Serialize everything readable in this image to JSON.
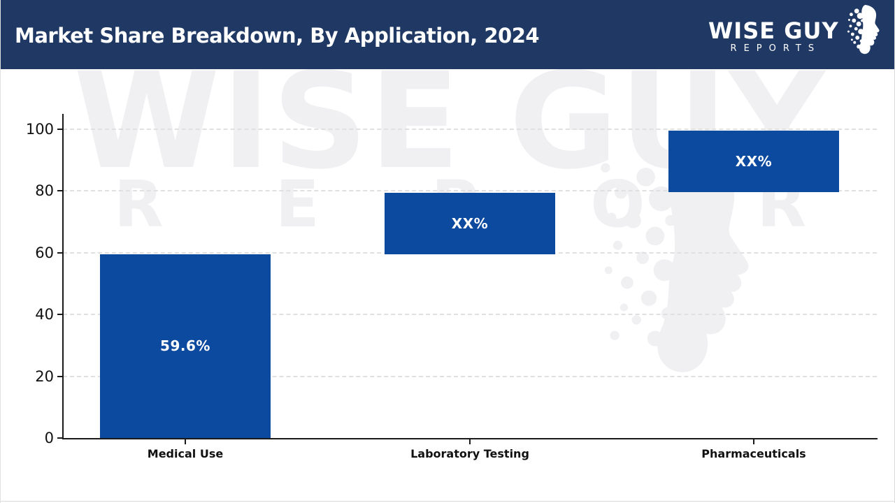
{
  "header": {
    "title": "Market Share Breakdown, By Application, 2024",
    "bg_color": "#1f3864",
    "logo_line1": "WISE GUY",
    "logo_line2": "REPORTS"
  },
  "watermark": {
    "line1": "WISE GUY",
    "line2": "R E P O R T S"
  },
  "chart_data": {
    "type": "bar",
    "subtype": "waterfall",
    "title": "Market Share Breakdown, By Application, 2024",
    "categories": [
      "Medical Use",
      "Laboratory Testing",
      "Pharmaceuticals"
    ],
    "bars": [
      {
        "category": "Medical Use",
        "start": 0,
        "end": 59.6,
        "label": "59.6%"
      },
      {
        "category": "Laboratory Testing",
        "start": 59.6,
        "end": 79.4,
        "label": "XX%"
      },
      {
        "category": "Pharmaceuticals",
        "start": 79.6,
        "end": 99.6,
        "label": "XX%"
      }
    ],
    "yticks": [
      0,
      20,
      40,
      60,
      80,
      100
    ],
    "ylim": [
      0,
      105
    ],
    "xlabel": "",
    "ylabel": "",
    "grid": "horizontal-dashed",
    "legend": "none",
    "bar_color": "#0b4a9e",
    "bar_label_color": "#ffffff"
  }
}
